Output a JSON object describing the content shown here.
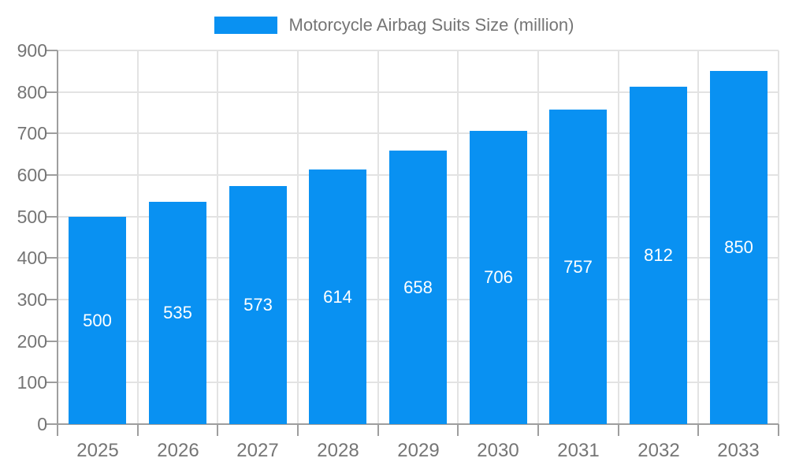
{
  "legend": {
    "label": "Motorcycle Airbag Suits Size (million)"
  },
  "chart_data": {
    "type": "bar",
    "title": "Motorcycle Airbag Suits Size (million)",
    "categories": [
      "2025",
      "2026",
      "2027",
      "2028",
      "2029",
      "2030",
      "2031",
      "2032",
      "2033"
    ],
    "values": [
      500,
      535,
      573,
      614,
      658,
      706,
      757,
      812,
      850
    ],
    "xlabel": "",
    "ylabel": "",
    "ylim": [
      0,
      900
    ],
    "ytick_interval": 100,
    "yticks": [
      0,
      100,
      200,
      300,
      400,
      500,
      600,
      700,
      800,
      900
    ],
    "grid": true,
    "legend_position": "top",
    "colors": {
      "bar": "#0991f2",
      "bar_value_label": "#ffffff",
      "axis_text": "#757575",
      "legend_text": "#757575",
      "gridline": "#e3e3e3",
      "axis_line": "#9e9e9e"
    }
  }
}
